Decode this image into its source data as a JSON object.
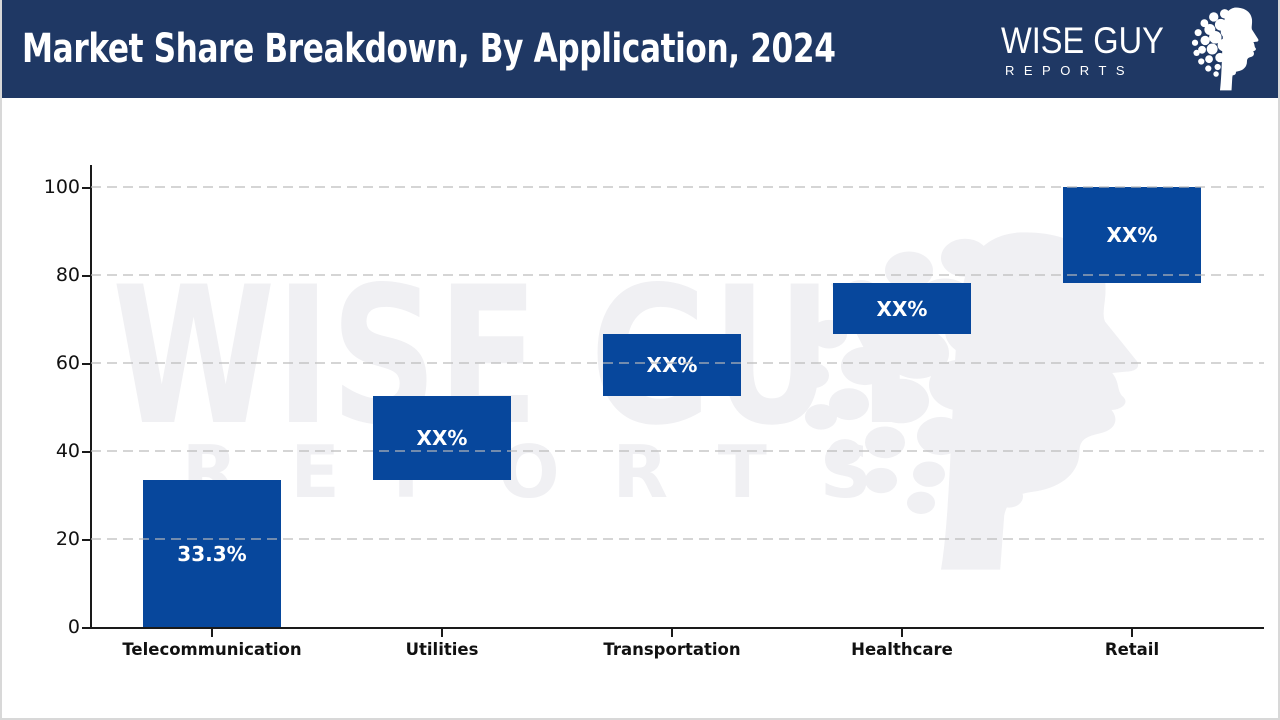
{
  "header": {
    "title": "Market Share Breakdown, By Application, 2024",
    "logo": {
      "line1": "WISE GUY",
      "line2": "REPORTS"
    }
  },
  "watermark": {
    "line1": "WISE GUY",
    "line2": "REPORTS"
  },
  "chart_data": {
    "type": "bar",
    "subtype": "waterfall",
    "title": "Market Share Breakdown, By Application, 2024",
    "categories": [
      "Telecommunication",
      "Utilities",
      "Transportation",
      "Healthcare",
      "Retail"
    ],
    "bars": [
      {
        "category": "Telecommunication",
        "start": 0,
        "end": 33.3,
        "label": "33.3%"
      },
      {
        "category": "Utilities",
        "start": 33.3,
        "end": 52.4,
        "label": "XX%"
      },
      {
        "category": "Transportation",
        "start": 52.4,
        "end": 66.6,
        "label": "XX%"
      },
      {
        "category": "Healthcare",
        "start": 66.6,
        "end": 78.1,
        "label": "XX%"
      },
      {
        "category": "Retail",
        "start": 78.1,
        "end": 100,
        "label": "XX%"
      }
    ],
    "xlabel": "",
    "ylabel": "",
    "ylim": [
      0,
      105
    ],
    "yticks": [
      0,
      20,
      40,
      60,
      80,
      100
    ],
    "grid": {
      "horizontal": true,
      "style": "dashed",
      "drawn_over_bars": true
    },
    "legend": "none",
    "colors": {
      "bar": "#07479c",
      "bar_label": "#ffffff",
      "grid": "rgba(185,185,185,0.6)",
      "axis": "#1a1a1a",
      "header_bg": "#1f3864",
      "header_text": "#ffffff",
      "watermark": "#f0f0f3"
    }
  }
}
